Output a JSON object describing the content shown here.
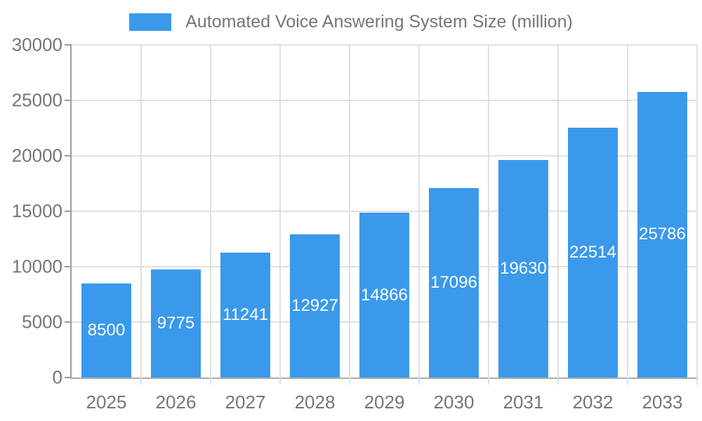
{
  "chart_data": {
    "type": "bar",
    "title": "Automated Voice Answering System Size (million)",
    "categories": [
      "2025",
      "2026",
      "2027",
      "2028",
      "2029",
      "2030",
      "2031",
      "2032",
      "2033"
    ],
    "series": [
      {
        "name": "Automated Voice Answering System Size (million)",
        "values": [
          8500,
          9775,
          11241,
          12927,
          14866,
          17096,
          19630,
          22514,
          25786
        ]
      }
    ],
    "xlabel": "",
    "ylabel": "",
    "ylim": [
      0,
      30000
    ],
    "yticks": [
      0,
      5000,
      10000,
      15000,
      20000,
      25000,
      30000
    ],
    "grid": true,
    "legend_position": "top",
    "bar_color": "#3b99ec",
    "value_label_color": "#ffffff",
    "axis_text_color": "#757575",
    "grid_color": "#e0e0e0",
    "axis_line_color": "#9b9b9b",
    "bar_width_fraction": 0.727
  }
}
